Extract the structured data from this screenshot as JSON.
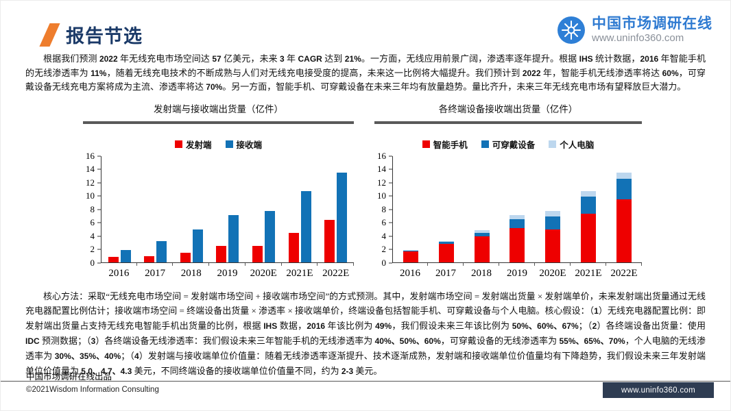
{
  "header": {
    "title": "报告节选"
  },
  "brand": {
    "name": "中国市场调研在线",
    "website": "www.uninfo360.com"
  },
  "paragraphs": {
    "intro": [
      {
        "t": "根据我们预测 ",
        "b": false
      },
      {
        "t": "2022",
        "b": true
      },
      {
        "t": " 年无线充电市场空间达 ",
        "b": false
      },
      {
        "t": "57",
        "b": true
      },
      {
        "t": " 亿美元，未来 ",
        "b": false
      },
      {
        "t": "3",
        "b": true
      },
      {
        "t": " 年 ",
        "b": false
      },
      {
        "t": "CAGR",
        "b": true
      },
      {
        "t": " 达到 ",
        "b": false
      },
      {
        "t": "21%",
        "b": true
      },
      {
        "t": "。一方面，无线应用前景广阔，渗透率逐年提升。根据 ",
        "b": false
      },
      {
        "t": "IHS",
        "b": true
      },
      {
        "t": " 统计数据，",
        "b": false
      },
      {
        "t": "2016",
        "b": true
      },
      {
        "t": " 年智能手机的无线渗透率为 ",
        "b": false
      },
      {
        "t": "11%",
        "b": true
      },
      {
        "t": "，随着无线充电技术的不断成熟与人们对无线充电接受度的提高，未来这一比例将大幅提升。我们预计到 ",
        "b": false
      },
      {
        "t": "2022",
        "b": true
      },
      {
        "t": " 年，智能手机无线渗透率将达 ",
        "b": false
      },
      {
        "t": "60%",
        "b": true
      },
      {
        "t": "，可穿戴设备无线充电方案将成为主流、渗透率将达 ",
        "b": false
      },
      {
        "t": "70%",
        "b": true
      },
      {
        "t": "。另一方面，智能手机、可穿戴设备在未来三年均有放量趋势。量比齐升，未来三年无线充电市场有望释放巨大潜力。",
        "b": false
      }
    ],
    "method": [
      {
        "t": "核心方法：采取“无线充电市场空间 = 发射端市场空间 + 接收端市场空间”的方式预测。其中，发射端市场空间 = 发射端出货量 × 发射端单价，未来发射端出货量通过无线充电器配置比例估计；接收端市场空间 = 终端设备出货量 × 渗透率 × 接收端单价，终端设备包括智能手机、可穿戴设备与个人电脑。核心假设：（",
        "b": false
      },
      {
        "t": "1",
        "b": true
      },
      {
        "t": "）无线充电器配置比例：即发射端出货量占支持无线充电智能手机出货量的比例，根据 ",
        "b": false
      },
      {
        "t": "IHS",
        "b": true
      },
      {
        "t": " 数据，",
        "b": false
      },
      {
        "t": "2016",
        "b": true
      },
      {
        "t": " 年该比例为 ",
        "b": false
      },
      {
        "t": "49%",
        "b": true
      },
      {
        "t": "，我们假设未来三年该比例为 ",
        "b": false
      },
      {
        "t": "50%、60%、67%",
        "b": true
      },
      {
        "t": "；（",
        "b": false
      },
      {
        "t": "2",
        "b": true
      },
      {
        "t": "）各终端设备出货量：使用 ",
        "b": false
      },
      {
        "t": "IDC",
        "b": true
      },
      {
        "t": " 预测数据；（",
        "b": false
      },
      {
        "t": "3",
        "b": true
      },
      {
        "t": "）各终端设备无线渗透率：我们假设未来三年智能手机的无线渗透率为 ",
        "b": false
      },
      {
        "t": "40%、50%、60%",
        "b": true
      },
      {
        "t": "，可穿戴设备的无线渗透率为 ",
        "b": false
      },
      {
        "t": "55%、65%、70%",
        "b": true
      },
      {
        "t": "，个人电脑的无线渗透率为 ",
        "b": false
      },
      {
        "t": "30%、35%、40%",
        "b": true
      },
      {
        "t": "；（",
        "b": false
      },
      {
        "t": "4",
        "b": true
      },
      {
        "t": "）发射端与接收端单位价值量：随着无线渗透率逐渐提升、技术逐渐成熟，发射端和接收端单位价值量均有下降趋势，我们假设未来三年发射端单位价值量为 ",
        "b": false
      },
      {
        "t": "5.0、4.7、4.3",
        "b": true
      },
      {
        "t": " 美元，不同终端设备的接收端单位价值量不同，约为 ",
        "b": false
      },
      {
        "t": "2-3",
        "b": true
      },
      {
        "t": " 美元。",
        "b": false
      }
    ]
  },
  "chart_data": [
    {
      "type": "bar",
      "stacked": false,
      "title": "发射端与接收端出货量（亿件）",
      "categories": [
        "2016",
        "2017",
        "2018",
        "2019",
        "2020E",
        "2021E",
        "2022E"
      ],
      "series": [
        {
          "name": "发射端",
          "color": "#ee0000",
          "values": [
            0.8,
            0.9,
            1.4,
            2.4,
            2.45,
            4.35,
            6.3
          ]
        },
        {
          "name": "接收端",
          "color": "#1272b6",
          "values": [
            1.8,
            3.2,
            4.9,
            7.1,
            7.65,
            10.7,
            13.5
          ]
        }
      ],
      "ylim": [
        0,
        16
      ],
      "ytick": 2,
      "legend_position": "top",
      "grid": false
    },
    {
      "type": "bar",
      "stacked": true,
      "title": "各终端设备接收端出货量（亿件）",
      "categories": [
        "2016",
        "2017",
        "2018",
        "2019",
        "2020E",
        "2021E",
        "2022E"
      ],
      "series": [
        {
          "name": "智能手机",
          "color": "#ee0000",
          "values": [
            1.6,
            2.75,
            3.9,
            5.1,
            4.9,
            7.3,
            9.4
          ]
        },
        {
          "name": "可穿戴设备",
          "color": "#1272b6",
          "values": [
            0.1,
            0.25,
            0.45,
            1.4,
            2.0,
            2.6,
            3.1
          ]
        },
        {
          "name": "个人电脑",
          "color": "#bdd7ee",
          "values": [
            0.1,
            0.2,
            0.5,
            0.6,
            0.75,
            0.8,
            1.0
          ]
        }
      ],
      "ylim": [
        0,
        16
      ],
      "ytick": 2,
      "legend_position": "top",
      "grid": false
    }
  ],
  "footer": {
    "producer": "中国市场调研在线出品",
    "copyright": "©2021Wisdom Information Consulting",
    "website": "www.uninfo360.com"
  },
  "colors": {
    "accent_orange": "#ee7d2d",
    "title_navy": "#1b3a68",
    "brand_blue": "#2e7ad1",
    "footer_navy": "#2e3c52",
    "series_red": "#ee0000",
    "series_blue": "#1272b6",
    "series_lightblue": "#bdd7ee",
    "rule_gray": "#595959"
  }
}
